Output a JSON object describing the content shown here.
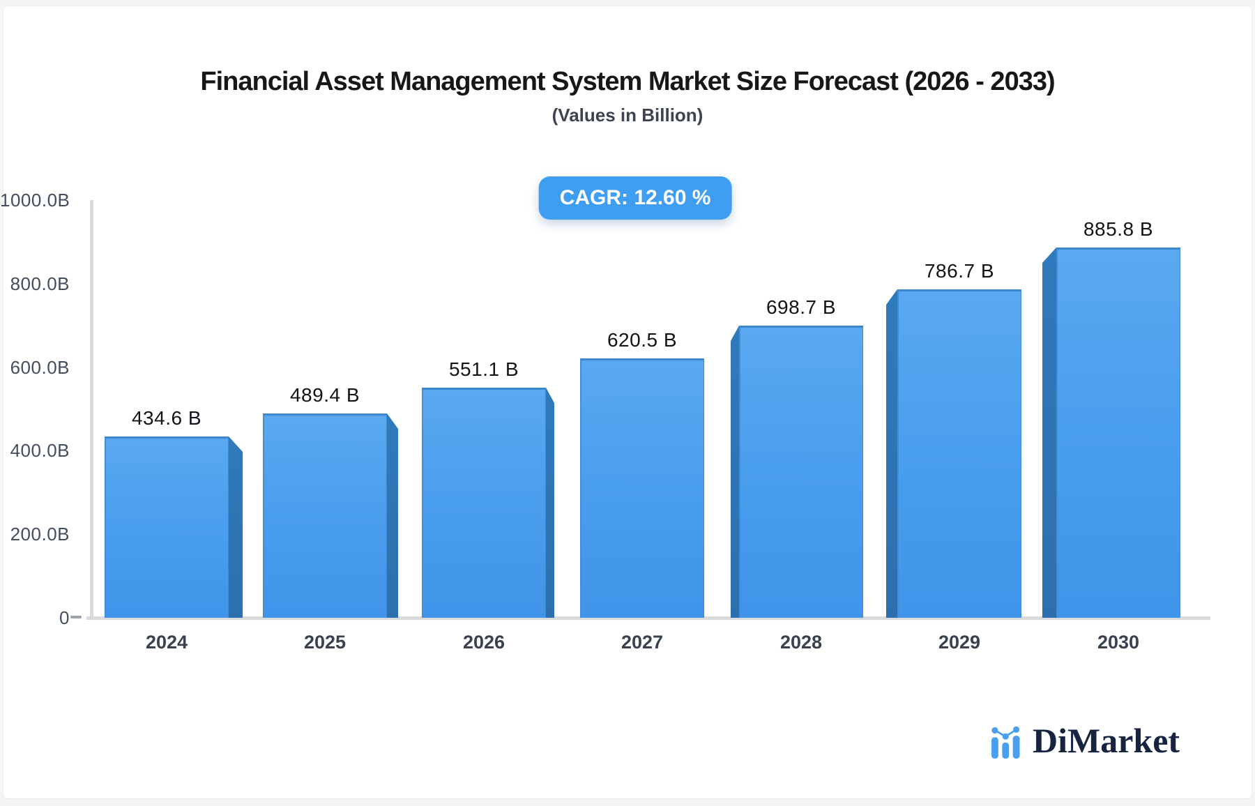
{
  "header": {
    "title": "Financial Asset Management System Market Size Forecast (2026 - 2033)",
    "subtitle": "(Values in Billion)"
  },
  "badge": {
    "label": "CAGR: 12.60 %"
  },
  "chart_data": {
    "type": "bar",
    "title": "Financial Asset Management System Market Size Forecast (2026 - 2033)",
    "subtitle": "(Values in Billion)",
    "categories": [
      "2024",
      "2025",
      "2026",
      "2027",
      "2028",
      "2029",
      "2030"
    ],
    "values": [
      434.6,
      489.4,
      551.1,
      620.5,
      698.7,
      786.7,
      885.8
    ],
    "value_labels": [
      "434.6 B",
      "489.4 B",
      "551.1 B",
      "620.5 B",
      "698.7 B",
      "786.7 B",
      "885.8 B"
    ],
    "y_ticks_top_to_bottom": [
      "1000.0B",
      "800.0B",
      "600.0B",
      "400.0B",
      "200.0B",
      "0"
    ],
    "ylim": [
      0,
      1000
    ],
    "xlabel": "",
    "ylabel": "",
    "grid": false,
    "legend": false,
    "annotations": [
      "CAGR: 12.60 %"
    ],
    "colors": {
      "bar_front": "#4a9fee",
      "bar_side": "#2e74b4",
      "bar_top_border": "#3d87cf",
      "badge_bg": "#3f9ef2",
      "axis_line": "#d9dadc",
      "value_label_text": "#101418",
      "tick_text": "#434d5c",
      "brand_navy": "#172441",
      "brand_blue": "#4aa0f0"
    }
  },
  "footer": {
    "brand": "DiMarket"
  }
}
